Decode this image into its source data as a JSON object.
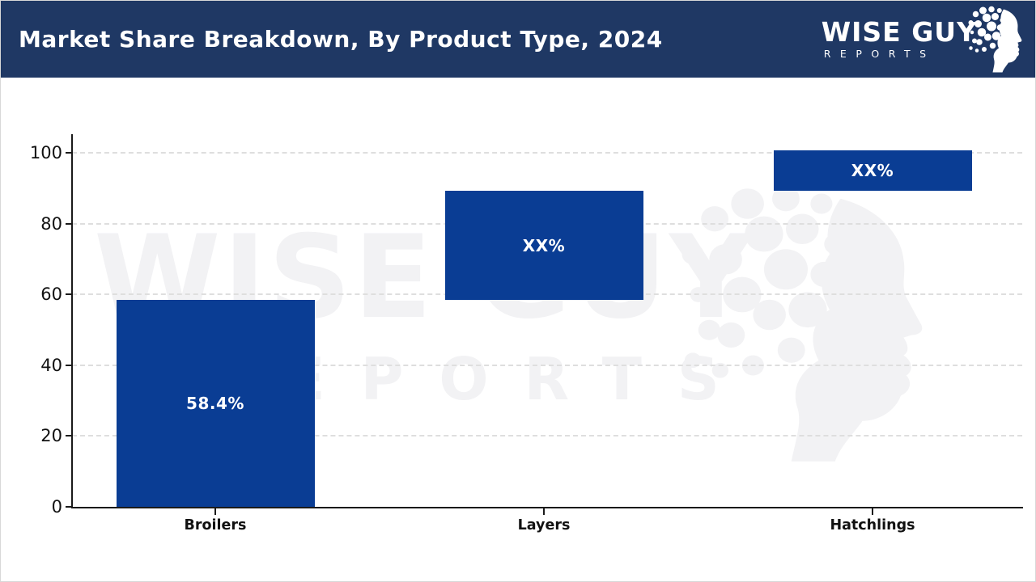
{
  "header": {
    "title": "Market Share Breakdown, By Product Type, 2024",
    "logo": {
      "line1": "WISE GUY",
      "line2": "REPORTS"
    }
  },
  "watermark": {
    "line1": "WISE GUY",
    "line2": "REPORTS"
  },
  "chart_data": {
    "type": "bar",
    "subtype": "waterfall-style floating bars, cumulative to 100%",
    "title": "Market Share Breakdown, By Product Type, 2024",
    "categories": [
      "Broilers",
      "Layers",
      "Hatchlings"
    ],
    "bars": [
      {
        "category": "Broilers",
        "start": 0,
        "end": 58.4,
        "label": "58.4%"
      },
      {
        "category": "Layers",
        "start": 58.4,
        "end": 89.2,
        "label": "XX%"
      },
      {
        "category": "Hatchlings",
        "start": 89.2,
        "end": 100.6,
        "label": "XX%"
      }
    ],
    "yticks": [
      0,
      20,
      40,
      60,
      80,
      100
    ],
    "ylim": [
      0,
      105
    ],
    "xlabel": "",
    "ylabel": "",
    "grid": "horizontal dashed at y ticks",
    "legend": "none",
    "bar_color": "#0a3d94",
    "label_color": "#ffffff"
  },
  "colors": {
    "header_bg": "#1f3864",
    "bar": "#0a3d94",
    "grid": "#dedede",
    "axis": "#1a1a1a",
    "watermark": "#f2f2f4",
    "text": "#111111",
    "title_text": "#ffffff"
  }
}
